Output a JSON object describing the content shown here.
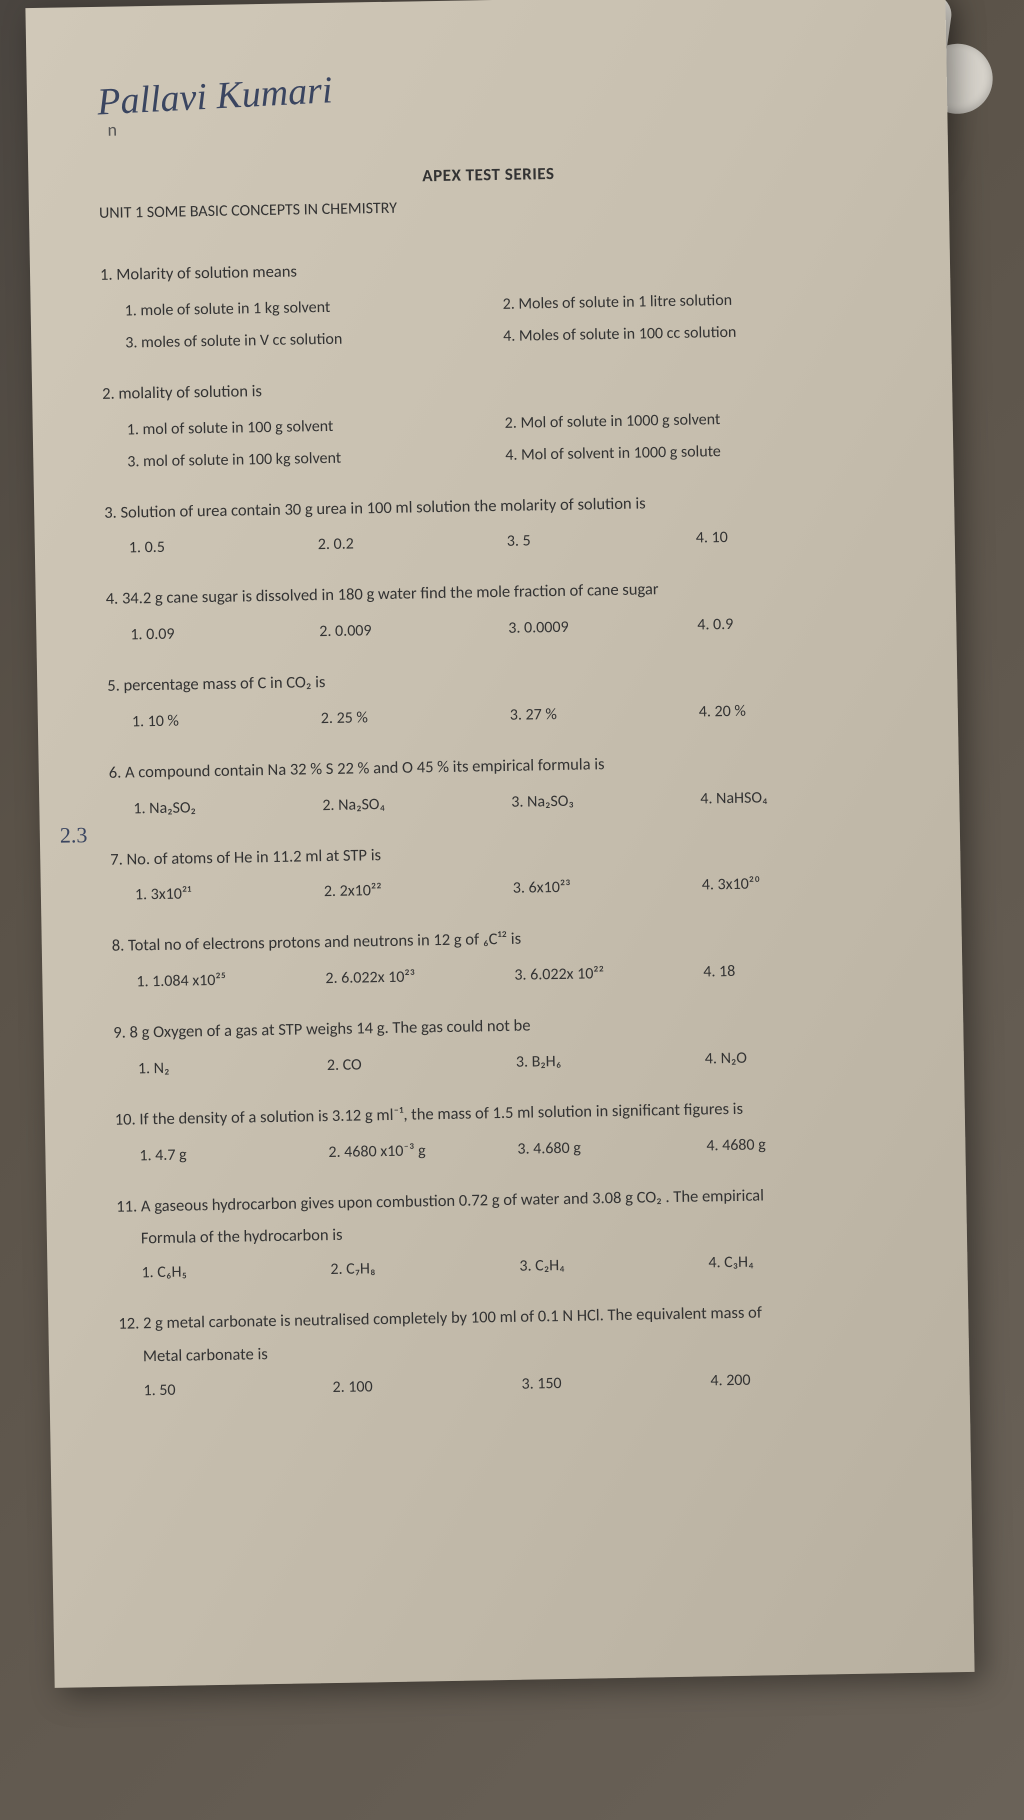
{
  "handwritten_name": "Pallavi Kumari",
  "handwritten_sub": "n",
  "series_title": "APEX TEST SERIES",
  "unit_title": "UNIT 1 SOME BASIC CONCEPTS IN CHEMISTRY",
  "margin_note": "2.3",
  "questions": [
    {
      "num": "1.",
      "text": "Molarity of solution means",
      "layout": "two-col",
      "options": [
        "1. mole of solute in 1 kg solvent",
        "2. Moles of solute in 1 litre solution",
        "3. moles of solute in V cc solution",
        "4. Moles of solute in 100 cc solution"
      ]
    },
    {
      "num": "2.",
      "text": "molality of solution is",
      "layout": "two-col",
      "options": [
        "1. mol of solute in 100 g solvent",
        "2. Mol of solute in 1000 g solvent",
        "3. mol of solute in 100 kg solvent",
        "4. Mol of solvent in 1000 g solute"
      ]
    },
    {
      "num": "3.",
      "text": "Solution of urea contain 30 g urea in 100 ml solution the molarity of solution is",
      "layout": "four-col",
      "options": [
        "1. 0.5",
        "2. 0.2",
        "3. 5",
        "4. 10"
      ]
    },
    {
      "num": "4.",
      "text": "34.2 g cane sugar is dissolved in 180 g water find the mole fraction of cane sugar",
      "layout": "four-col",
      "options": [
        "1. 0.09",
        "2. 0.009",
        "3. 0.0009",
        "4. 0.9"
      ]
    },
    {
      "num": "5.",
      "text": "percentage mass of C in CO₂ is",
      "layout": "four-col",
      "options": [
        "1. 10 %",
        "2. 25 %",
        "3. 27 %",
        "4. 20 %"
      ]
    },
    {
      "num": "6.",
      "text": "A compound contain Na 32 %  S 22 %  and O 45 % its empirical formula is",
      "layout": "four-col",
      "options": [
        "1. Na₂SO₂",
        "2. Na₂SO₄",
        "3. Na₂SO₃",
        "4. NaHSO₄"
      ]
    },
    {
      "num": "7.",
      "text": "No. of atoms of He in 11.2 ml at STP is",
      "layout": "four-col",
      "options": [
        "1. 3x10²¹",
        "2. 2x10²²",
        "3. 6x10²³",
        "4. 3x10²⁰"
      ]
    },
    {
      "num": "8.",
      "text": "Total no of electrons protons and neutrons in 12 g of ₆C¹² is",
      "layout": "four-col",
      "options": [
        "1. 1.084 x10²⁵",
        "2. 6.022x 10²³",
        "3. 6.022x 10²²",
        "4. 18"
      ]
    },
    {
      "num": "9.",
      "text": "8 g Oxygen of a gas at STP weighs 14 g. The gas could not be",
      "layout": "four-col",
      "options": [
        "1. N₂",
        "2. CO",
        "3. B₂H₆",
        "4. N₂O"
      ]
    },
    {
      "num": "10.",
      "text": "If the density of a solution is 3.12 g ml⁻¹,  the mass of 1.5 ml solution in significant figures is",
      "layout": "four-col",
      "options": [
        "1. 4.7 g",
        "2. 4680 x10⁻³ g",
        "3. 4.680 g",
        "4. 4680 g"
      ]
    },
    {
      "num": "11.",
      "text": "A gaseous hydrocarbon gives upon combustion 0.72 g of water and 3.08 g CO₂ . The empirical",
      "text2": "Formula of the hydrocarbon is",
      "layout": "four-col",
      "options": [
        "1. C₆H₅",
        "2. C₇H₈",
        "3. C₂H₄",
        "4. C₃H₄"
      ]
    },
    {
      "num": "12.",
      "text": "2 g metal carbonate is neutralised completely by 100 ml of 0.1 N HCl. The equivalent mass of",
      "text2": "Metal carbonate is",
      "layout": "four-col",
      "options": [
        "1. 50",
        "2. 100",
        "3. 150",
        "4. 200"
      ]
    }
  ],
  "colors": {
    "paper_bg": "#c8c0b0",
    "text": "#333333",
    "handwriting": "#3a4560"
  }
}
